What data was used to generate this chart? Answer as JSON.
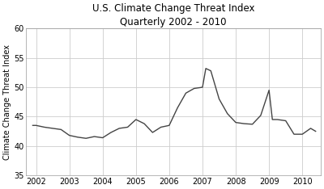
{
  "title_line1": "U.S. Climate Change Threat Index",
  "title_line2": "Quarterly 2002 - 2010",
  "ylabel": "Climate Change Threat Index",
  "ylim": [
    35,
    60
  ],
  "yticks": [
    35,
    40,
    45,
    50,
    55,
    60
  ],
  "xlim": [
    2001.7,
    2010.55
  ],
  "line_color": "#444444",
  "line_width": 1.0,
  "background_color": "#ffffff",
  "plot_bg_color": "#ffffff",
  "grid_color": "#cccccc",
  "x_values": [
    2001.9,
    2002.0,
    2002.25,
    2002.5,
    2002.75,
    2003.0,
    2003.25,
    2003.5,
    2003.75,
    2004.0,
    2004.25,
    2004.5,
    2004.75,
    2005.0,
    2005.25,
    2005.5,
    2005.75,
    2006.0,
    2006.25,
    2006.5,
    2006.75,
    2007.0,
    2007.1,
    2007.25,
    2007.5,
    2007.75,
    2008.0,
    2008.25,
    2008.5,
    2008.75,
    2009.0,
    2009.1,
    2009.25,
    2009.5,
    2009.75,
    2010.0,
    2010.25,
    2010.4
  ],
  "y_values": [
    43.5,
    43.5,
    43.2,
    43.0,
    42.8,
    41.8,
    41.5,
    41.3,
    41.6,
    41.4,
    42.3,
    43.0,
    43.2,
    44.5,
    43.8,
    42.3,
    43.2,
    43.5,
    46.5,
    49.0,
    49.8,
    50.0,
    53.2,
    52.8,
    48.0,
    45.5,
    44.0,
    43.8,
    43.7,
    45.2,
    49.5,
    44.5,
    44.5,
    44.3,
    42.0,
    42.0,
    43.0,
    42.5
  ],
  "xticks": [
    2002,
    2003,
    2004,
    2005,
    2006,
    2007,
    2008,
    2009,
    2010
  ],
  "title_fontsize": 8.5,
  "ylabel_fontsize": 7.0,
  "tick_fontsize": 7.0
}
